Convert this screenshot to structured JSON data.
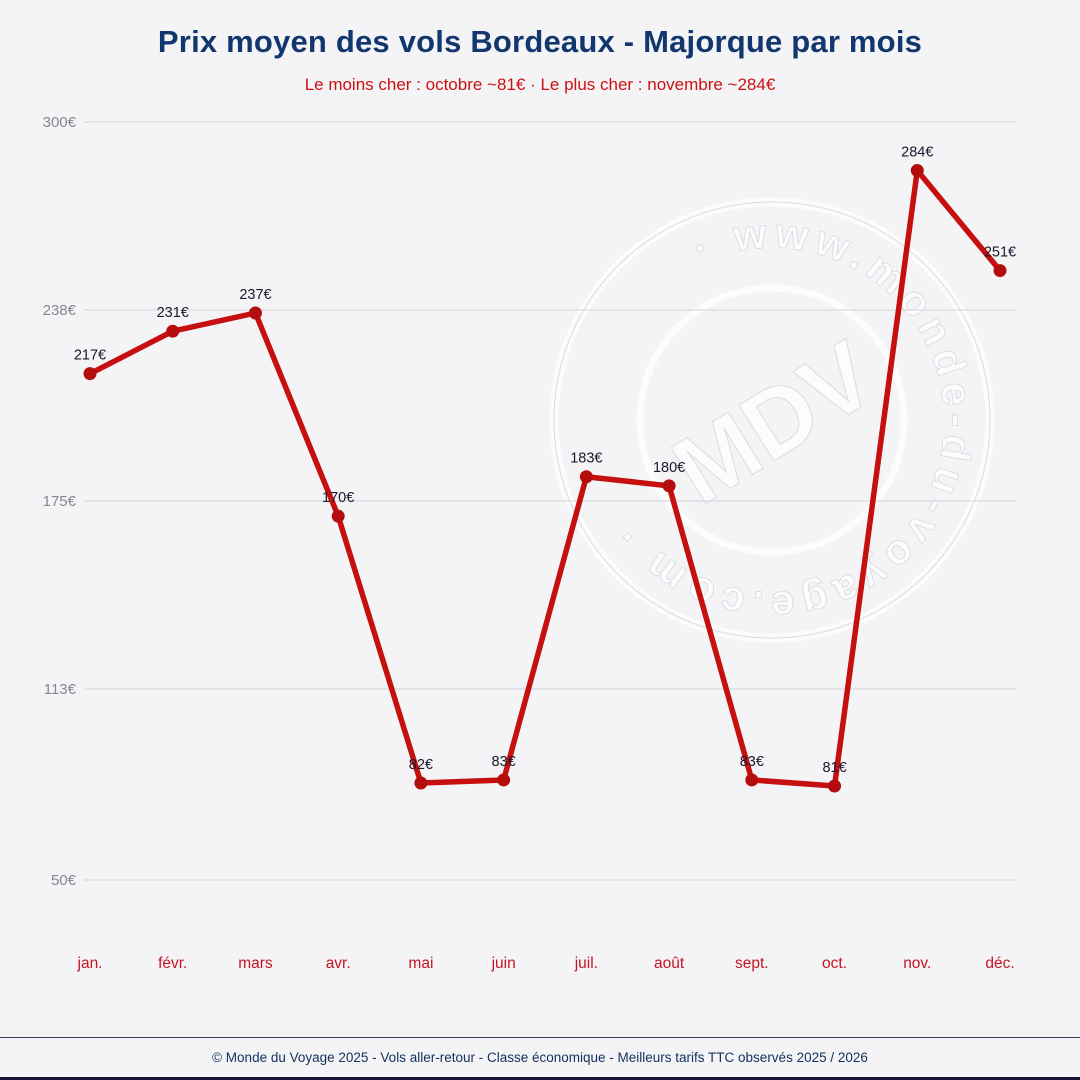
{
  "title": "Prix moyen des vols Bordeaux - Majorque par mois",
  "subtitle": "Le moins cher : octobre ~81€ · Le plus cher : novembre ~284€",
  "footer": "© Monde du Voyage 2025 - Vols aller-retour - Classe économique - Meilleurs tarifs TTC observés 2025 / 2026",
  "watermark": {
    "url": "www.monde-du-voyage.com",
    "badge": "MDV"
  },
  "colors": {
    "line": "#c60f0f",
    "point": "#b30d0d",
    "month_label": "#c41425",
    "value_label": "#18182e",
    "tick_label": "#86868f",
    "grid_line": "#d2d2da",
    "title": "#12376e",
    "subtitle": "#cc1111",
    "footer": "#13315c",
    "background": "#f4f4f6"
  },
  "chart_data": {
    "type": "line",
    "title": "Prix moyen des vols Bordeaux - Majorque par mois",
    "categories": [
      "jan.",
      "févr.",
      "mars",
      "avr.",
      "mai",
      "juin",
      "juil.",
      "août",
      "sept.",
      "oct.",
      "nov.",
      "déc."
    ],
    "values": [
      217,
      231,
      237,
      170,
      82,
      83,
      183,
      180,
      83,
      81,
      284,
      251
    ],
    "unit": "€",
    "yticks": [
      300,
      238,
      175,
      113,
      50
    ],
    "ylim": [
      50,
      300
    ],
    "grid": true,
    "legend": "none",
    "xlabel": "",
    "ylabel": ""
  }
}
